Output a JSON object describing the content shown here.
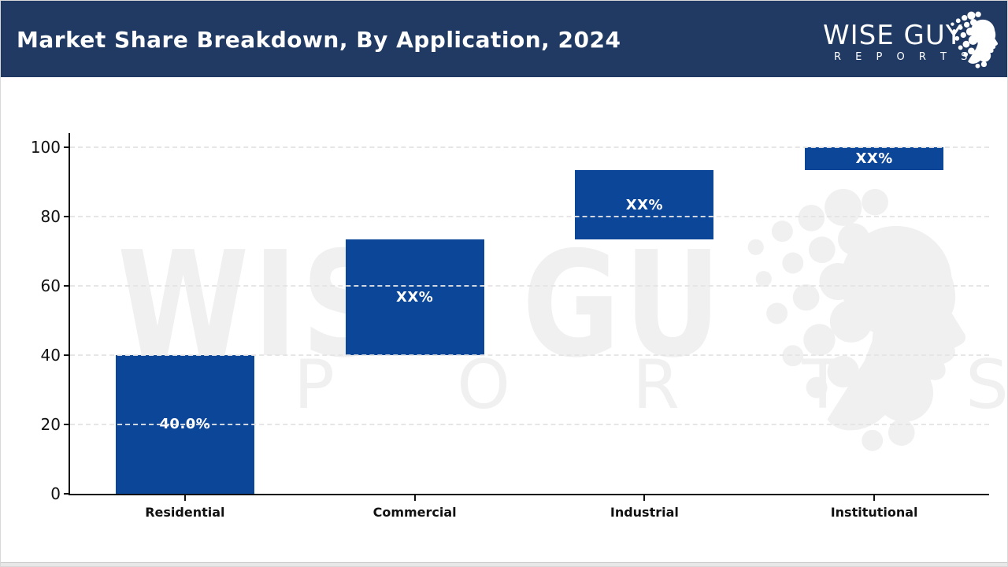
{
  "header": {
    "title": "Market Share Breakdown, By Application, 2024",
    "logo": {
      "brand_line1": "WISE GUY",
      "brand_line2": "R E P O R T S"
    }
  },
  "watermark": {
    "line1": "WISE GU",
    "line2": "P O R T S"
  },
  "colors": {
    "header_bg": "#213a63",
    "bar": "#0c4699",
    "bar_label_text": "#ffffff",
    "gridline": "#e4e4e4",
    "axis": "#111111",
    "watermark": "#f0f0f0"
  },
  "chart_data": {
    "type": "bar",
    "subtype": "waterfall",
    "title": "Market Share Breakdown, By Application, 2024",
    "categories": [
      "Residential",
      "Commercial",
      "Industrial",
      "Institutional"
    ],
    "segments": [
      {
        "category": "Residential",
        "start": 0,
        "end": 40,
        "label": "40.0%"
      },
      {
        "category": "Commercial",
        "start": 40,
        "end": 73.3,
        "label": "XX%"
      },
      {
        "category": "Industrial",
        "start": 73.3,
        "end": 93.3,
        "label": "XX%"
      },
      {
        "category": "Institutional",
        "start": 93.3,
        "end": 100,
        "label": "XX%"
      }
    ],
    "ylim": [
      0,
      104
    ],
    "yticks": [
      0,
      20,
      40,
      60,
      80,
      100
    ],
    "xlabel": "",
    "ylabel": "",
    "grid": "horizontal-dashed",
    "legend": "none"
  }
}
